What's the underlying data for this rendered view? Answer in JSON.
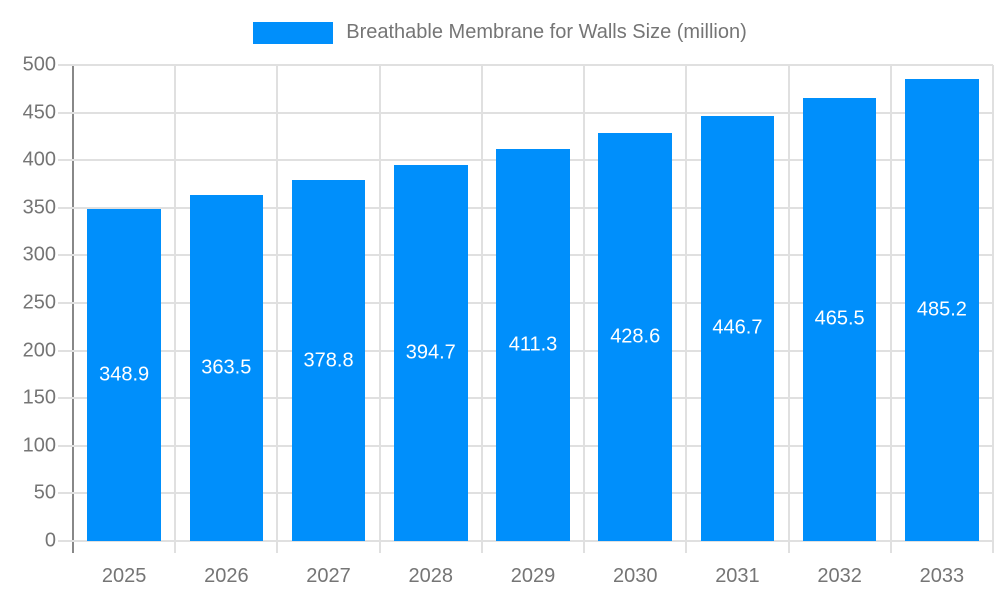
{
  "chart_data": {
    "type": "bar",
    "title": "Breathable Membrane for Walls Size (million)",
    "categories": [
      "2025",
      "2026",
      "2027",
      "2028",
      "2029",
      "2030",
      "2031",
      "2032",
      "2033"
    ],
    "values": [
      348.9,
      363.5,
      378.8,
      394.7,
      411.3,
      428.6,
      446.7,
      465.5,
      485.2
    ],
    "ylim": [
      0,
      500
    ],
    "yticks": [
      0,
      50,
      100,
      150,
      200,
      250,
      300,
      350,
      400,
      450,
      500
    ],
    "grid": "on",
    "legend_position": "top",
    "value_labels": "centered-in-bar",
    "colors": {
      "bar": "#008ffb",
      "grid": "#e0e0e0",
      "axis_line": "#888888",
      "axis_text": "#757575",
      "value_text": "#ffffff",
      "background": "#ffffff"
    }
  }
}
